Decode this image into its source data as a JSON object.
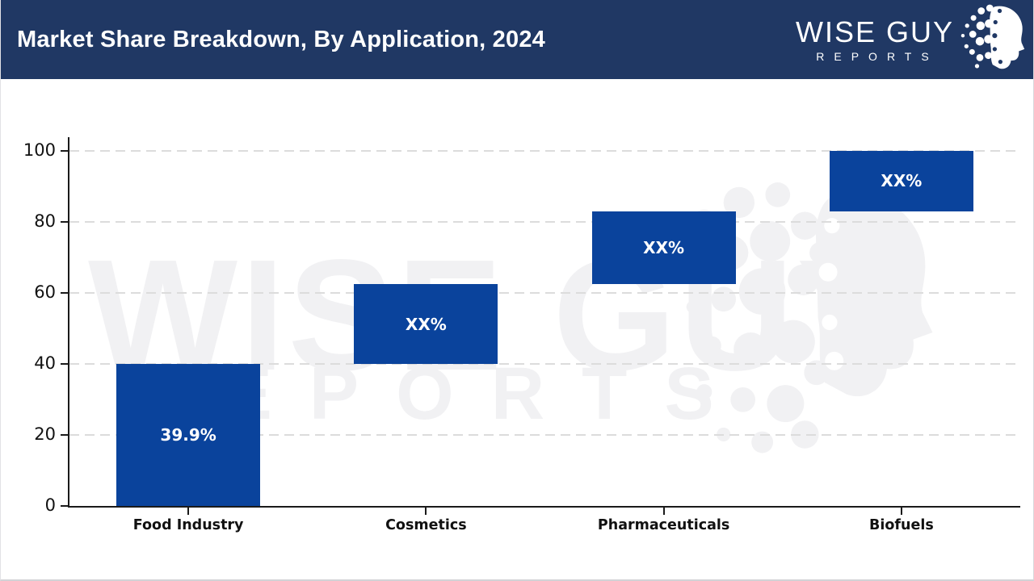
{
  "header": {
    "title": "Market Share Breakdown, By Application, 2024",
    "logo": {
      "wordmark": "WISE GUY",
      "subtext": "REPORTS"
    }
  },
  "watermark": {
    "wordmark": "WISE GUY",
    "subtext": "REPORTS"
  },
  "colors": {
    "header_bg": "#203864",
    "bar_blue": "#0a439c",
    "watermark_gray": "#f1f1f3",
    "grid_gray": "#dcdcdc"
  },
  "chart_data": {
    "type": "bar",
    "subtype": "waterfall",
    "title": "Market Share Breakdown, By Application, 2024",
    "categories": [
      "Food Industry",
      "Cosmetics",
      "Pharmaceuticals",
      "Biofuels"
    ],
    "segments": [
      {
        "category": "Food Industry",
        "start": 0,
        "end": 39.9,
        "value": 39.9,
        "label": "39.9%"
      },
      {
        "category": "Cosmetics",
        "start": 40,
        "end": 62.5,
        "value": 22.5,
        "label": "XX%"
      },
      {
        "category": "Pharmaceuticals",
        "start": 62.5,
        "end": 83,
        "value": 20.5,
        "label": "XX%"
      },
      {
        "category": "Biofuels",
        "start": 83,
        "end": 100,
        "value": 17,
        "label": "XX%"
      }
    ],
    "xlabel": "",
    "ylabel": "",
    "ylim": [
      0,
      100
    ],
    "yticks": [
      0,
      20,
      40,
      60,
      80,
      100
    ],
    "grid": "horizontal-dashed",
    "legend": "none",
    "bar_color": "#0a439c",
    "bar_label_color": "#ffffff"
  }
}
